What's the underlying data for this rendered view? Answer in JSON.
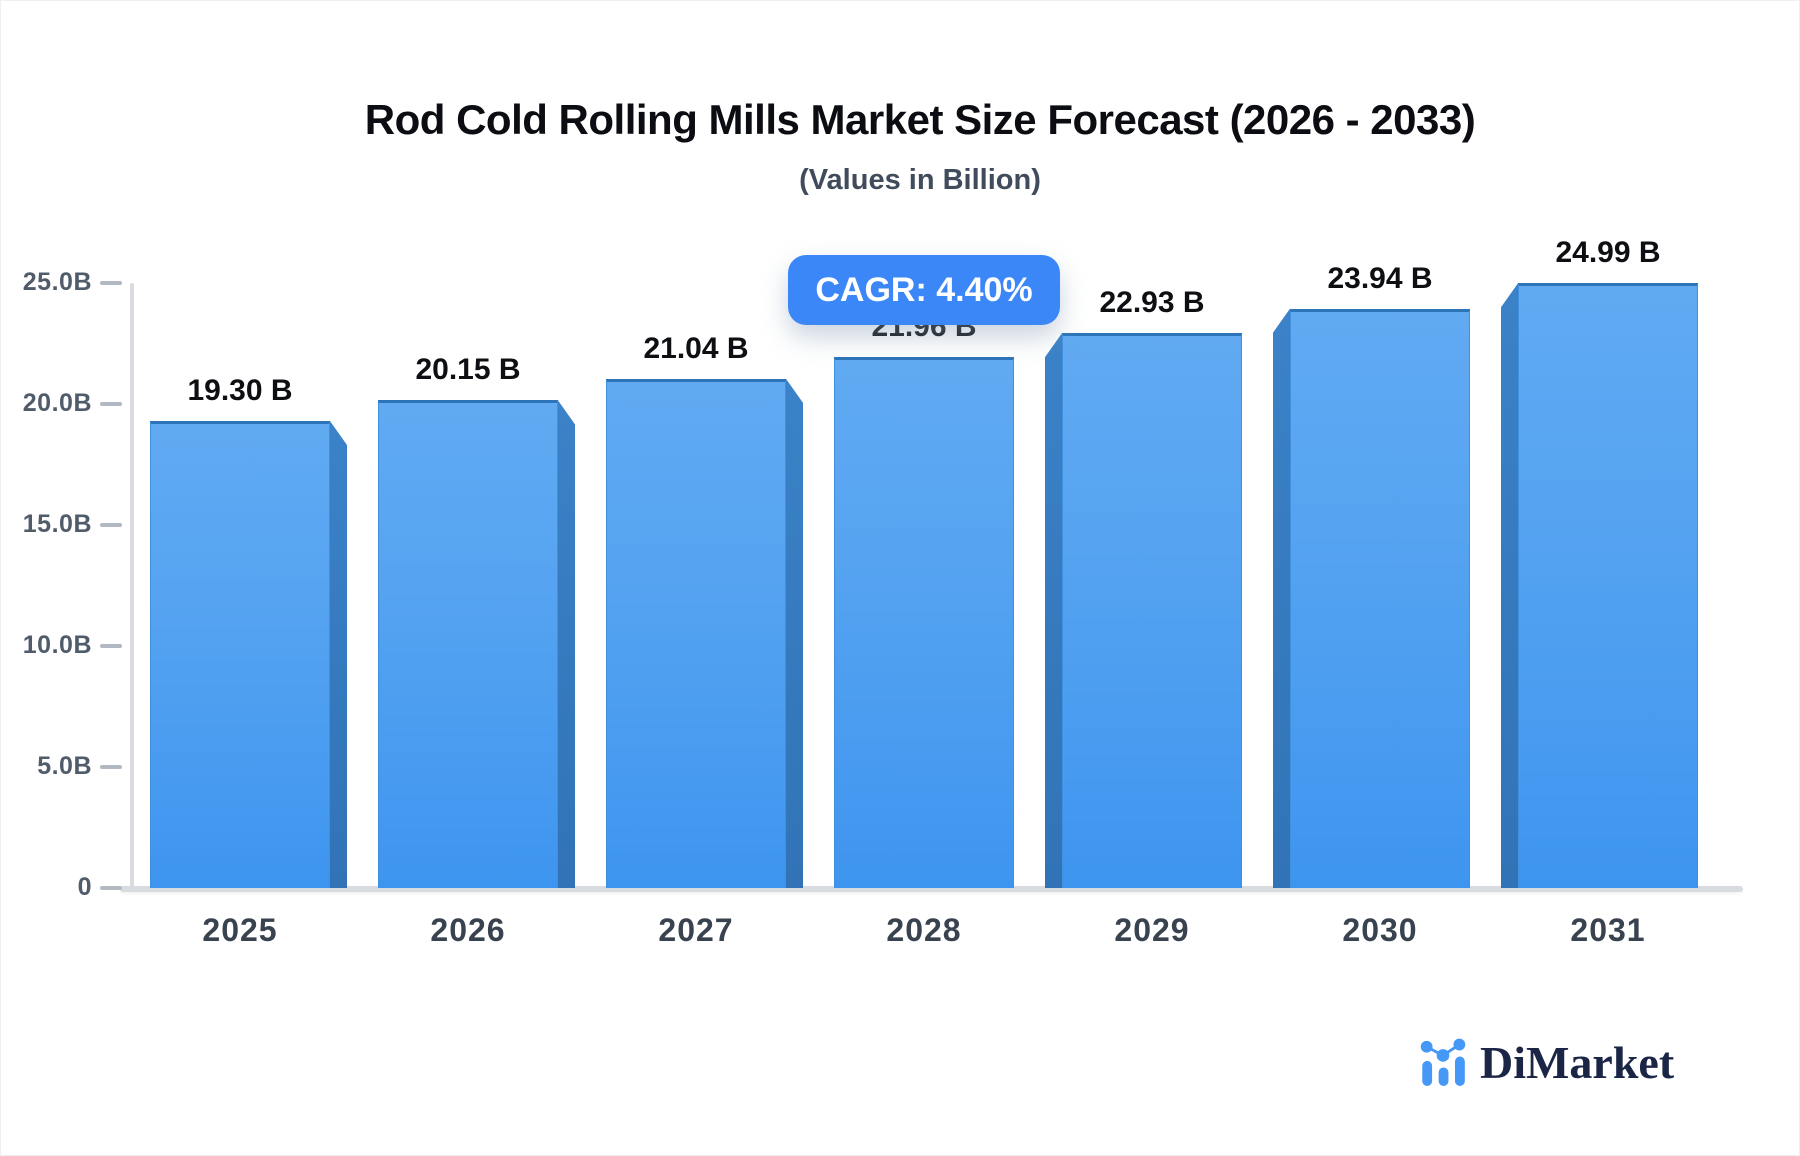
{
  "title": "Rod Cold Rolling Mills Market Size Forecast (2026 - 2033)",
  "subtitle": "(Values in Billion)",
  "cagr_badge": "CAGR: 4.40%",
  "brand": {
    "name": "DiMarket",
    "icon": "bar-chart-with-dots-icon"
  },
  "colors": {
    "bar_face_top": "#61aaf2",
    "bar_face_bottom": "#3e95ef",
    "bar_side": "#3478bf",
    "badge_blue": "#3c87f7",
    "axis_gray": "#d8dbe0",
    "brand_blue": "#4598f6",
    "brand_navy": "#1b2545"
  },
  "chart_data": {
    "type": "bar",
    "title": "Rod Cold Rolling Mills Market Size Forecast (2026 - 2033)",
    "subtitle": "(Values in Billion)",
    "categories": [
      "2025",
      "2026",
      "2027",
      "2028",
      "2029",
      "2030",
      "2031"
    ],
    "values": [
      19.3,
      20.15,
      21.04,
      21.96,
      22.93,
      23.94,
      24.99
    ],
    "bar_labels": [
      "19.30 B",
      "20.15 B",
      "21.04 B",
      "21.96 B",
      "22.93 B",
      "23.94 B",
      "24.99 B"
    ],
    "annotations": [
      {
        "text": "CAGR: 4.40%",
        "position": "above 2028 bar"
      }
    ],
    "xlabel": "",
    "ylabel": "",
    "ylim": [
      0,
      25
    ],
    "yticks": [
      {
        "value": 25,
        "label": "25.0B"
      },
      {
        "value": 20,
        "label": "20.0B"
      },
      {
        "value": 15,
        "label": "15.0B"
      },
      {
        "value": 10,
        "label": "10.0B"
      },
      {
        "value": 5,
        "label": "5.0B"
      },
      {
        "value": 0,
        "label": "0"
      }
    ],
    "grid": false,
    "legend": false,
    "effect": "3d-bevel, perspective toward center bar"
  }
}
